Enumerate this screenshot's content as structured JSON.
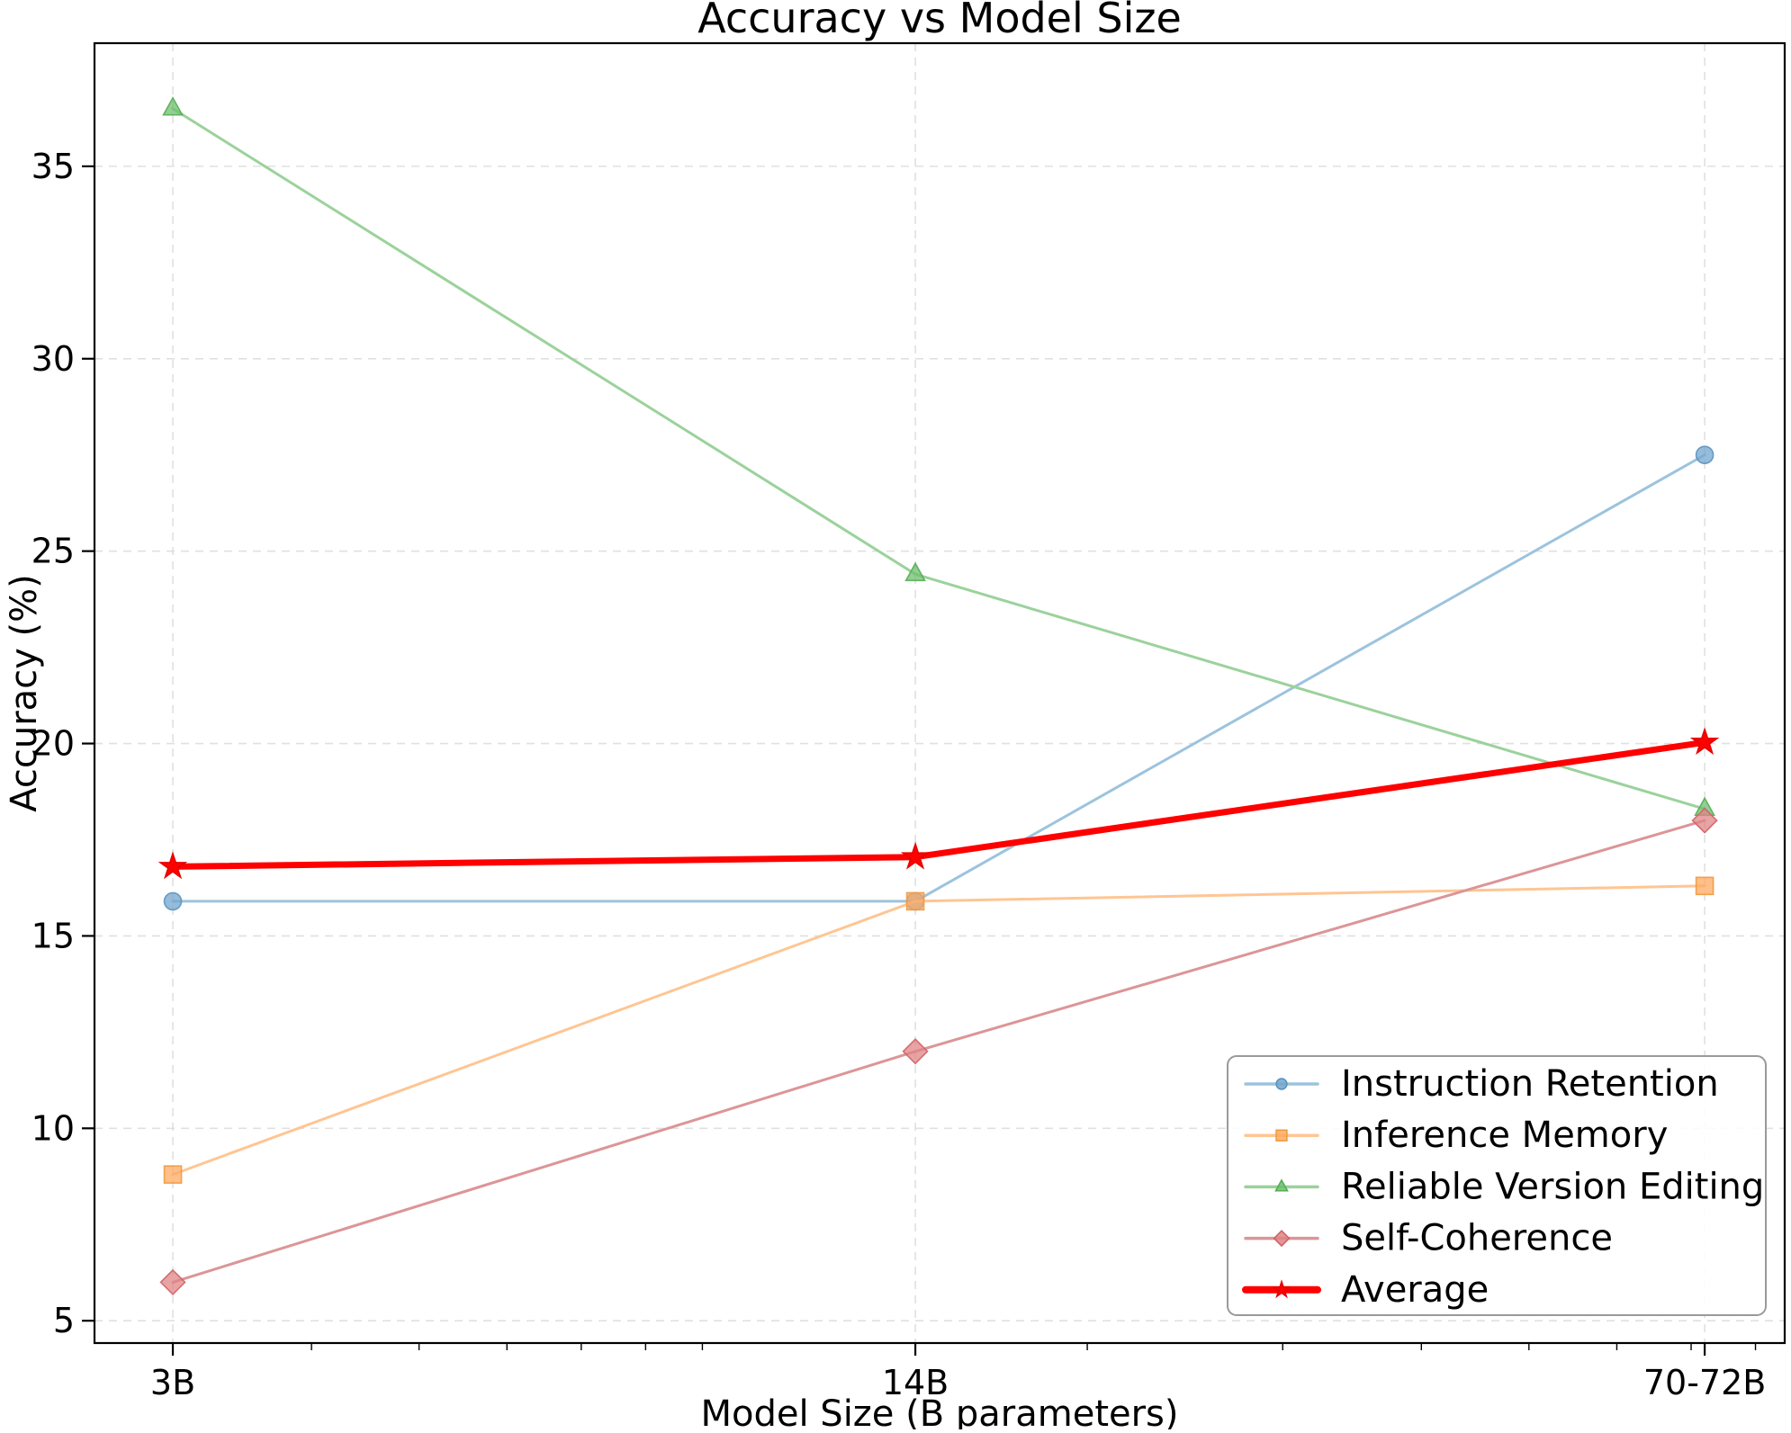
{
  "figure": {
    "title": "Accuracy vs Model Size"
  },
  "chart_data": {
    "type": "line",
    "title": "Accuracy vs Model Size",
    "xlabel": "Model Size (B parameters)",
    "ylabel": "Accuracy (%)",
    "x_scale": "log",
    "x": [
      3,
      14,
      72
    ],
    "x_tick_labels": [
      "3B",
      "14B",
      "70-72B"
    ],
    "y_ticks": [
      5,
      10,
      15,
      20,
      25,
      30,
      35
    ],
    "x_minor_ticks": [
      4,
      5,
      6,
      7,
      8,
      9,
      20,
      30,
      40,
      50,
      60,
      70,
      80
    ],
    "xlim": [
      2.55,
      85
    ],
    "ylim": [
      4.42,
      38.2
    ],
    "grid": {
      "show": true,
      "style": "dashed",
      "color": "#e0e0e0"
    },
    "legend": {
      "position": "lower-right"
    },
    "series": [
      {
        "name": "Instruction Retention",
        "marker": "circle",
        "line_color": "#9cc3de",
        "marker_color": "#73a5cd",
        "edge_color": "#5b93bf",
        "line_width": 3,
        "values": [
          15.9,
          15.9,
          27.5
        ]
      },
      {
        "name": "Inference Memory",
        "marker": "square",
        "line_color": "#ffc592",
        "marker_color": "#fdaa60",
        "edge_color": "#f2993f",
        "line_width": 3,
        "values": [
          8.8,
          15.9,
          16.3
        ]
      },
      {
        "name": "Reliable Version Editing",
        "marker": "triangle",
        "line_color": "#9bd29b",
        "marker_color": "#6fbe6f",
        "edge_color": "#55ad55",
        "line_width": 3,
        "values": [
          36.5,
          24.4,
          18.3
        ]
      },
      {
        "name": "Self-Coherence",
        "marker": "diamond",
        "line_color": "#dc9597",
        "marker_color": "#e08486",
        "edge_color": "#cf6365",
        "line_width": 3,
        "values": [
          6.0,
          12.0,
          18.0
        ]
      },
      {
        "name": "Average",
        "marker": "star",
        "line_color": "#ff0000",
        "marker_color": "#ff0000",
        "edge_color": "#e60000",
        "line_width": 7,
        "values": [
          16.8,
          17.05,
          20.03
        ]
      }
    ]
  }
}
